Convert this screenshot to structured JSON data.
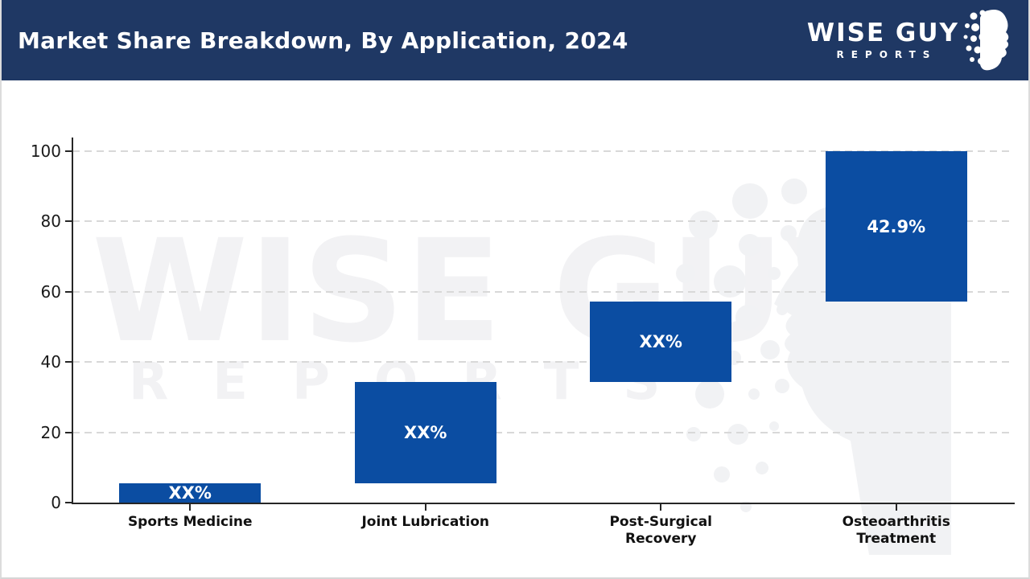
{
  "header": {
    "title": "Market Share Breakdown, By Application, 2024",
    "logo": {
      "line1": "WISE GUY",
      "line2": "REPORTS"
    }
  },
  "watermark": {
    "line1": "WISE GUY",
    "line2": "REPORTS"
  },
  "colors": {
    "header_bg": "#1f3864",
    "bar": "#0b4da2",
    "grid": "#d8d8d8",
    "axis": "#262626",
    "bar_label": "#ffffff",
    "watermark": "#f2f2f4"
  },
  "chart_data": {
    "type": "bar",
    "subtype": "waterfall",
    "title": "Market Share Breakdown, By Application, 2024",
    "xlabel": "",
    "ylabel": "",
    "categories": [
      "Sports Medicine",
      "Joint Lubrication",
      "Post-Surgical Recovery",
      "Osteoarthritis Treatment"
    ],
    "segments": [
      {
        "label": "XX%",
        "start": 0,
        "end": 5.5
      },
      {
        "label": "XX%",
        "start": 5.5,
        "end": 34.3
      },
      {
        "label": "XX%",
        "start": 34.3,
        "end": 57.1
      },
      {
        "label": "42.9%",
        "start": 57.1,
        "end": 100
      }
    ],
    "ylim": [
      0,
      104
    ],
    "yticks": [
      0,
      20,
      40,
      60,
      80,
      100
    ],
    "grid": "dashed-horizontal",
    "legend": "none"
  }
}
